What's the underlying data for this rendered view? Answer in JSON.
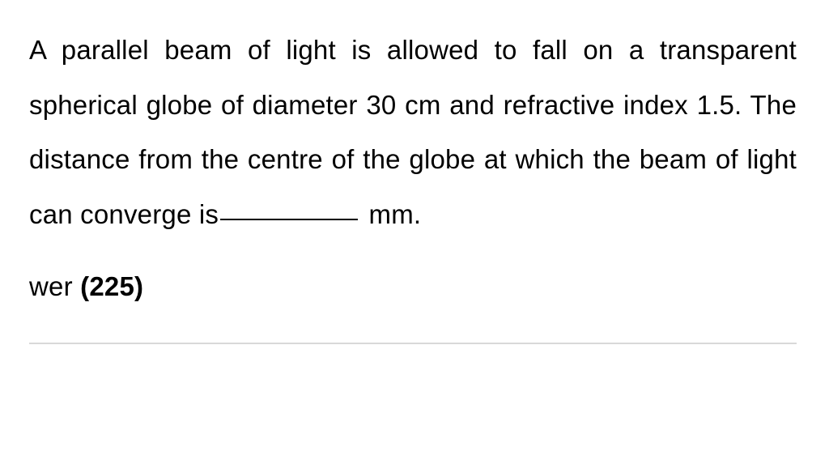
{
  "question": {
    "text_parts": {
      "p1": "A parallel beam of light is allowed to fall on a transparent spherical globe of diameter 30 cm and refractive index 1.5. The distance from the centre of the globe at which the beam of light can converge is",
      "unit": " mm."
    },
    "diameter_cm": 30,
    "refractive_index": 1.5,
    "answer_unit": "mm"
  },
  "answer": {
    "prefix": "wer ",
    "value": "(225)"
  },
  "style": {
    "font_size_pt": 25,
    "text_color": "#000000",
    "background_color": "#ffffff",
    "divider_color": "#d9d9d9",
    "line_height": 2.05
  }
}
